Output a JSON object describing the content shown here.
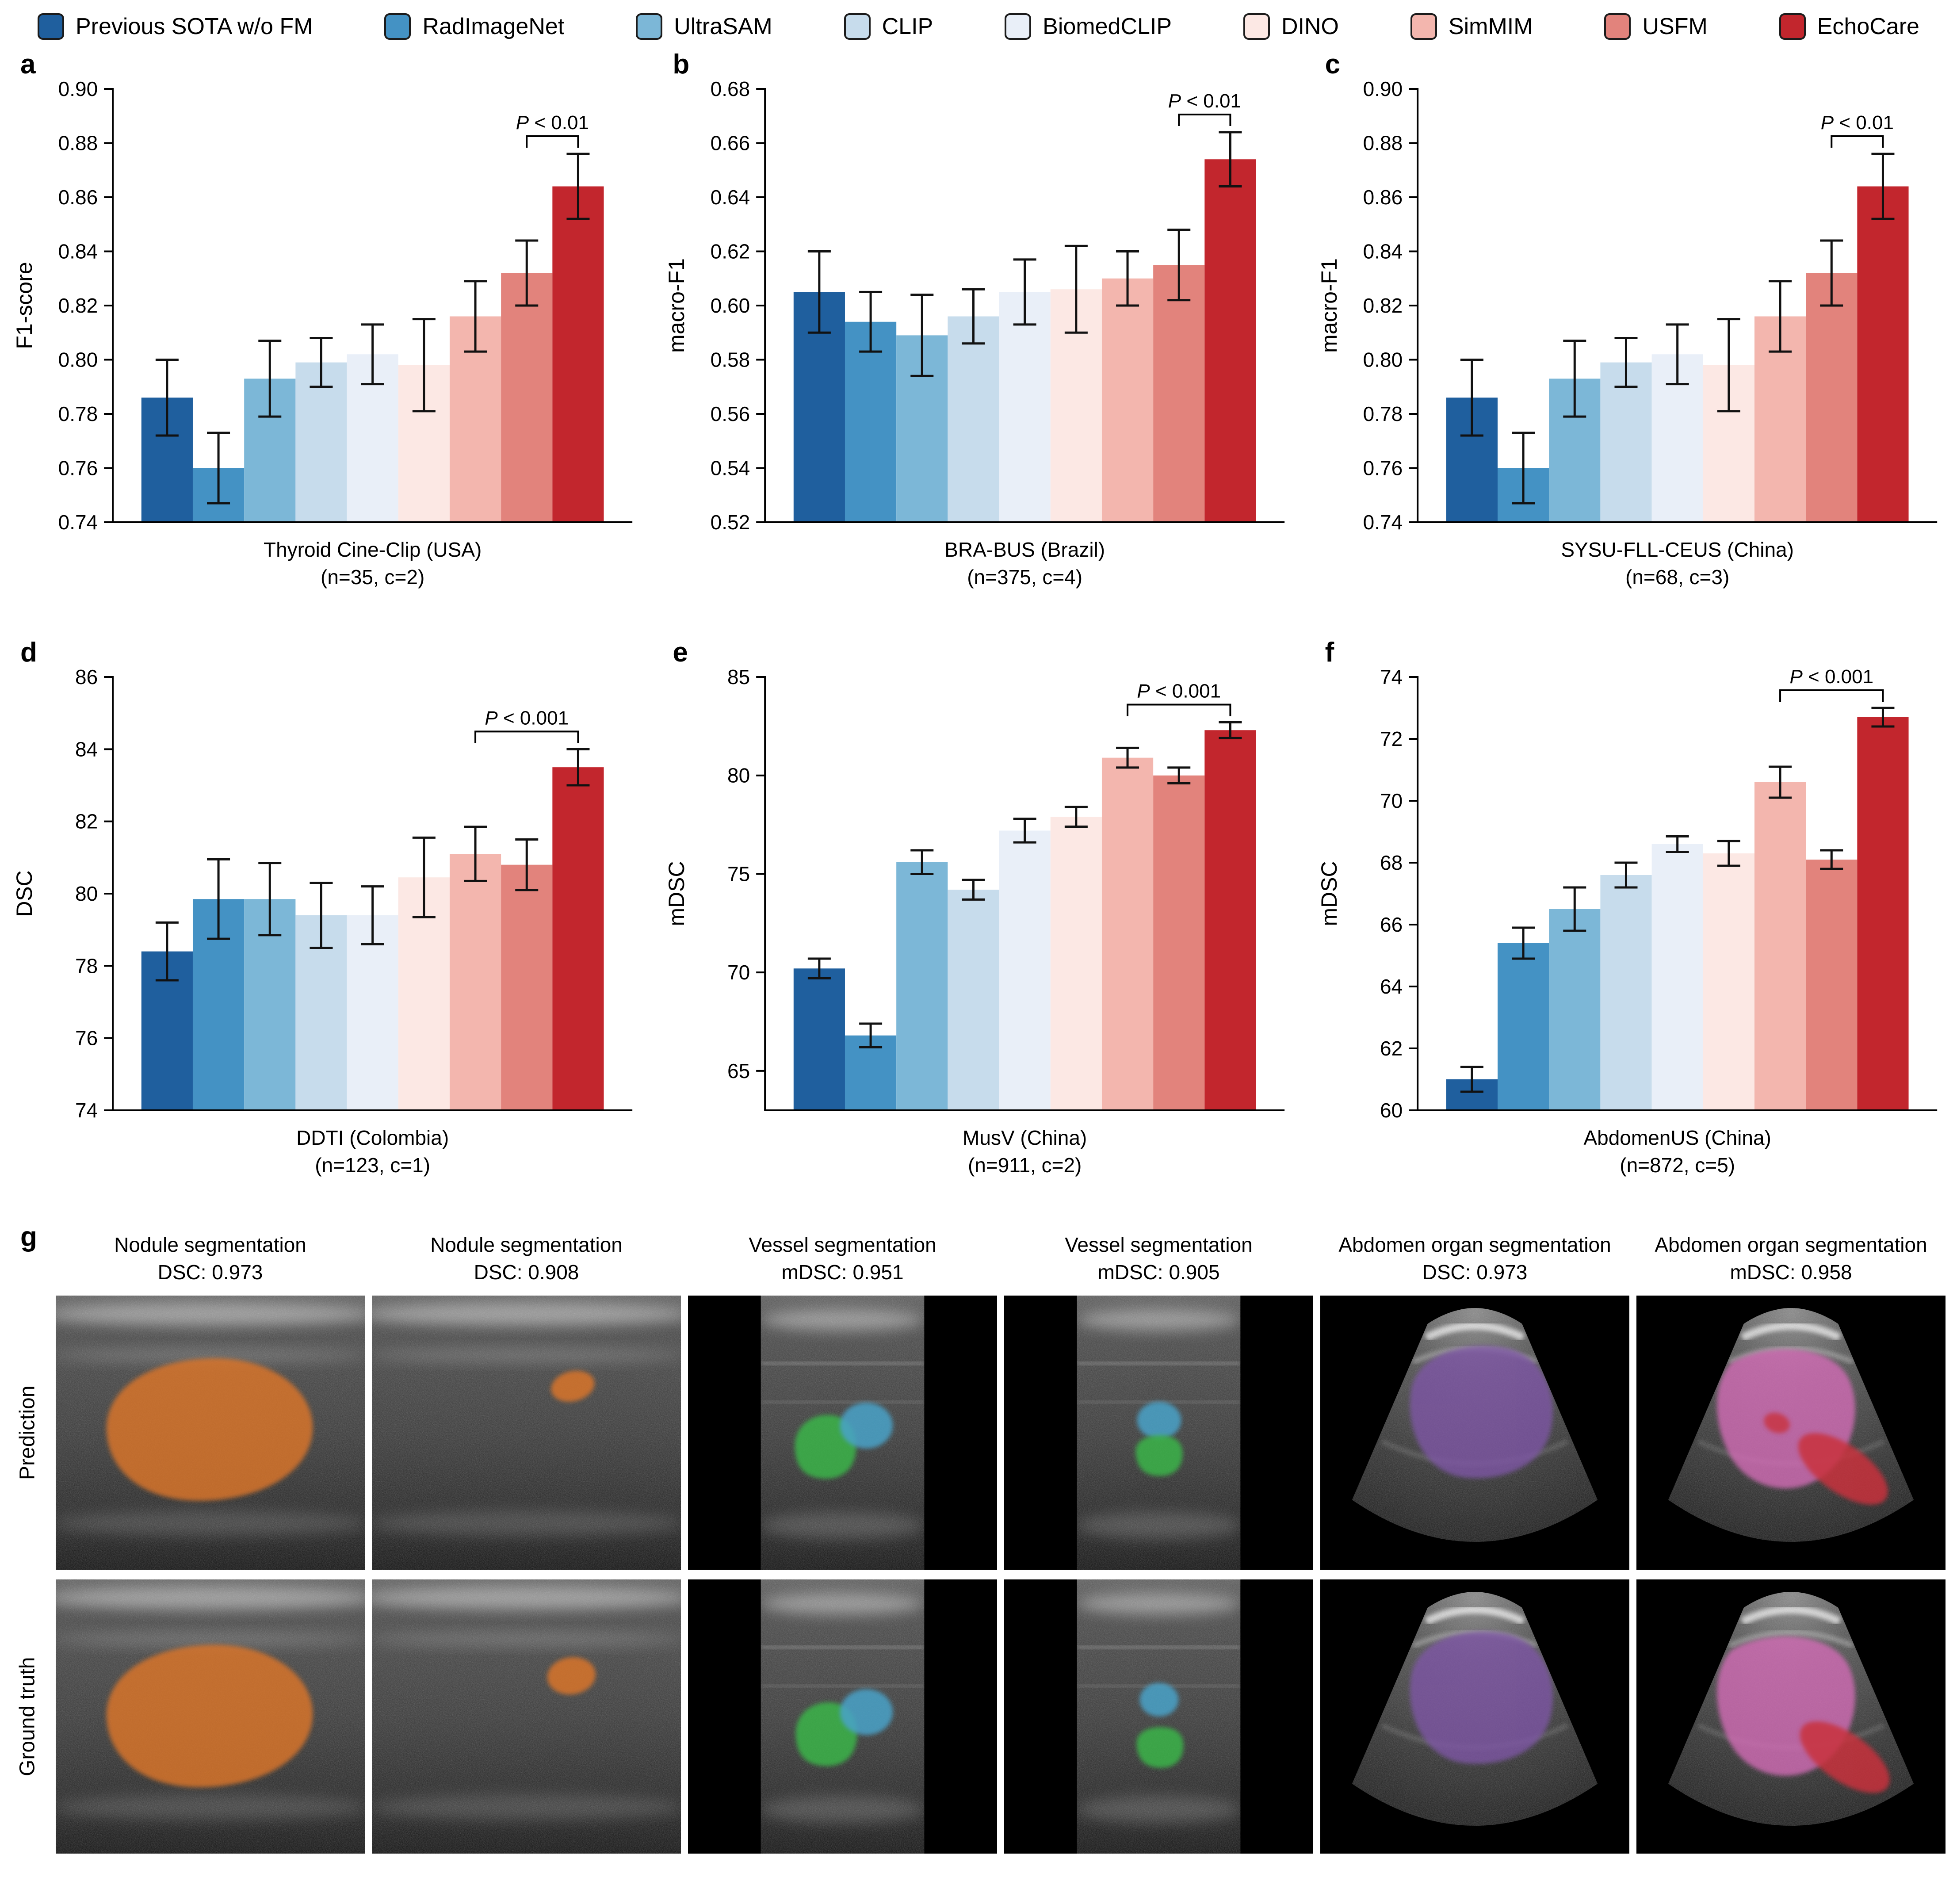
{
  "legend": {
    "items": [
      {
        "label": "Previous SOTA w/o FM",
        "color": "#1f5f9e"
      },
      {
        "label": "RadImageNet",
        "color": "#4492c4"
      },
      {
        "label": "UltraSAM",
        "color": "#7cb7d7"
      },
      {
        "label": "CLIP",
        "color": "#c7dcec"
      },
      {
        "label": "BiomedCLIP",
        "color": "#e9eff8"
      },
      {
        "label": "DINO",
        "color": "#fce8e4"
      },
      {
        "label": "SimMIM",
        "color": "#f3b6ae"
      },
      {
        "label": "USFM",
        "color": "#e2837c"
      },
      {
        "label": "EchoCare",
        "color": "#c2262d"
      }
    ]
  },
  "chart_data": [
    {
      "panel": "a",
      "type": "bar",
      "ylabel": "F1-score",
      "xlabel_line1": "Thyroid Cine-Clip (USA)",
      "xlabel_line2": "(n=35, c=2)",
      "ylim": [
        0.74,
        0.9
      ],
      "ytick_step": 0.02,
      "ytick_decimals": 2,
      "categories": [
        "Previous SOTA w/o FM",
        "RadImageNet",
        "UltraSAM",
        "CLIP",
        "BiomedCLIP",
        "DINO",
        "SimMIM",
        "USFM",
        "EchoCare"
      ],
      "values": [
        0.786,
        0.76,
        0.793,
        0.799,
        0.802,
        0.798,
        0.816,
        0.832,
        0.864
      ],
      "errors": [
        0.014,
        0.013,
        0.014,
        0.009,
        0.011,
        0.017,
        0.013,
        0.012,
        0.012
      ],
      "p_label": "P < 0.01",
      "p_between": [
        7,
        8
      ]
    },
    {
      "panel": "b",
      "type": "bar",
      "ylabel": "macro-F1",
      "xlabel_line1": "BRA-BUS (Brazil)",
      "xlabel_line2": "(n=375, c=4)",
      "ylim": [
        0.52,
        0.68
      ],
      "ytick_step": 0.02,
      "ytick_decimals": 2,
      "categories": [
        "Previous SOTA w/o FM",
        "RadImageNet",
        "UltraSAM",
        "CLIP",
        "BiomedCLIP",
        "DINO",
        "SimMIM",
        "USFM",
        "EchoCare"
      ],
      "values": [
        0.605,
        0.594,
        0.589,
        0.596,
        0.605,
        0.606,
        0.61,
        0.615,
        0.654
      ],
      "errors": [
        0.015,
        0.011,
        0.015,
        0.01,
        0.012,
        0.016,
        0.01,
        0.013,
        0.01
      ],
      "p_label": "P < 0.01",
      "p_between": [
        7,
        8
      ]
    },
    {
      "panel": "c",
      "type": "bar",
      "ylabel": "macro-F1",
      "xlabel_line1": "SYSU-FLL-CEUS (China)",
      "xlabel_line2": "(n=68, c=3)",
      "ylim": [
        0.74,
        0.9
      ],
      "ytick_step": 0.02,
      "ytick_decimals": 2,
      "categories": [
        "Previous SOTA w/o FM",
        "RadImageNet",
        "UltraSAM",
        "CLIP",
        "BiomedCLIP",
        "DINO",
        "SimMIM",
        "USFM",
        "EchoCare"
      ],
      "values": [
        0.786,
        0.76,
        0.793,
        0.799,
        0.802,
        0.798,
        0.816,
        0.832,
        0.864
      ],
      "errors": [
        0.014,
        0.013,
        0.014,
        0.009,
        0.011,
        0.017,
        0.013,
        0.012,
        0.012
      ],
      "p_label": "P < 0.01",
      "p_between": [
        7,
        8
      ]
    },
    {
      "panel": "d",
      "type": "bar",
      "ylabel": "DSC",
      "xlabel_line1": "DDTI (Colombia)",
      "xlabel_line2": "(n=123, c=1)",
      "ylim": [
        74,
        86
      ],
      "ytick_step": 2,
      "ytick_decimals": 0,
      "categories": [
        "Previous SOTA w/o FM",
        "RadImageNet",
        "UltraSAM",
        "CLIP",
        "BiomedCLIP",
        "DINO",
        "SimMIM",
        "USFM",
        "EchoCare"
      ],
      "values": [
        78.4,
        79.85,
        79.85,
        79.4,
        79.4,
        80.45,
        81.1,
        80.8,
        83.5
      ],
      "errors": [
        0.8,
        1.1,
        1.0,
        0.9,
        0.8,
        1.1,
        0.75,
        0.7,
        0.5
      ],
      "p_label": "P < 0.001",
      "p_between": [
        6,
        8
      ]
    },
    {
      "panel": "e",
      "type": "bar",
      "ylabel": "mDSC",
      "xlabel_line1": "MusV (China)",
      "xlabel_line2": "(n=911, c=2)",
      "ylim": [
        63,
        85
      ],
      "ytick_step": 5,
      "ytick_decimals": 0,
      "categories": [
        "Previous SOTA w/o FM",
        "RadImageNet",
        "UltraSAM",
        "CLIP",
        "BiomedCLIP",
        "DINO",
        "SimMIM",
        "USFM",
        "EchoCare"
      ],
      "values": [
        70.2,
        66.8,
        75.6,
        74.2,
        77.2,
        77.9,
        80.9,
        80.0,
        82.3
      ],
      "errors": [
        0.5,
        0.6,
        0.6,
        0.5,
        0.6,
        0.5,
        0.5,
        0.4,
        0.4
      ],
      "p_label": "P < 0.001",
      "p_between": [
        6,
        8
      ]
    },
    {
      "panel": "f",
      "type": "bar",
      "ylabel": "mDSC",
      "xlabel_line1": "AbdomenUS (China)",
      "xlabel_line2": "(n=872, c=5)",
      "ylim": [
        60,
        74
      ],
      "ytick_step": 2,
      "ytick_decimals": 0,
      "categories": [
        "Previous SOTA w/o FM",
        "RadImageNet",
        "UltraSAM",
        "CLIP",
        "BiomedCLIP",
        "DINO",
        "SimMIM",
        "USFM",
        "EchoCare"
      ],
      "values": [
        61.0,
        65.4,
        66.5,
        67.6,
        68.6,
        68.3,
        70.6,
        68.1,
        72.7
      ],
      "errors": [
        0.4,
        0.5,
        0.7,
        0.4,
        0.25,
        0.4,
        0.5,
        0.3,
        0.3
      ],
      "p_label": "P < 0.001",
      "p_between": [
        6,
        8
      ]
    }
  ],
  "panel_g": {
    "label": "g",
    "row_labels": [
      "Prediction",
      "Ground truth"
    ],
    "columns": [
      {
        "title": "Nodule segmentation",
        "metric": "DSC: 0.973",
        "base": "linear",
        "overlay": "nodule-large",
        "colors": [
          "#d9742c"
        ]
      },
      {
        "title": "Nodule segmentation",
        "metric": "DSC: 0.908",
        "base": "linear",
        "overlay": "nodule-small",
        "colors": [
          "#d9742c"
        ]
      },
      {
        "title": "Vessel segmentation",
        "metric": "mDSC: 0.951",
        "base": "narrow",
        "overlay": "vessel-pair",
        "colors": [
          "#3bb54a",
          "#4aa3c9"
        ]
      },
      {
        "title": "Vessel segmentation",
        "metric": "mDSC: 0.905",
        "base": "narrow",
        "overlay": "vessel-stack",
        "colors": [
          "#4aa3c9",
          "#3bb54a"
        ]
      },
      {
        "title": "Abdomen organ segmentation",
        "metric": "DSC: 0.973",
        "base": "sector",
        "overlay": "organ-single",
        "colors": [
          "#7e57a5"
        ]
      },
      {
        "title": "Abdomen organ segmentation",
        "metric": "mDSC: 0.958",
        "base": "sector",
        "overlay": "organ-pair",
        "colors": [
          "#d06cb4",
          "#c9303c"
        ]
      }
    ]
  }
}
